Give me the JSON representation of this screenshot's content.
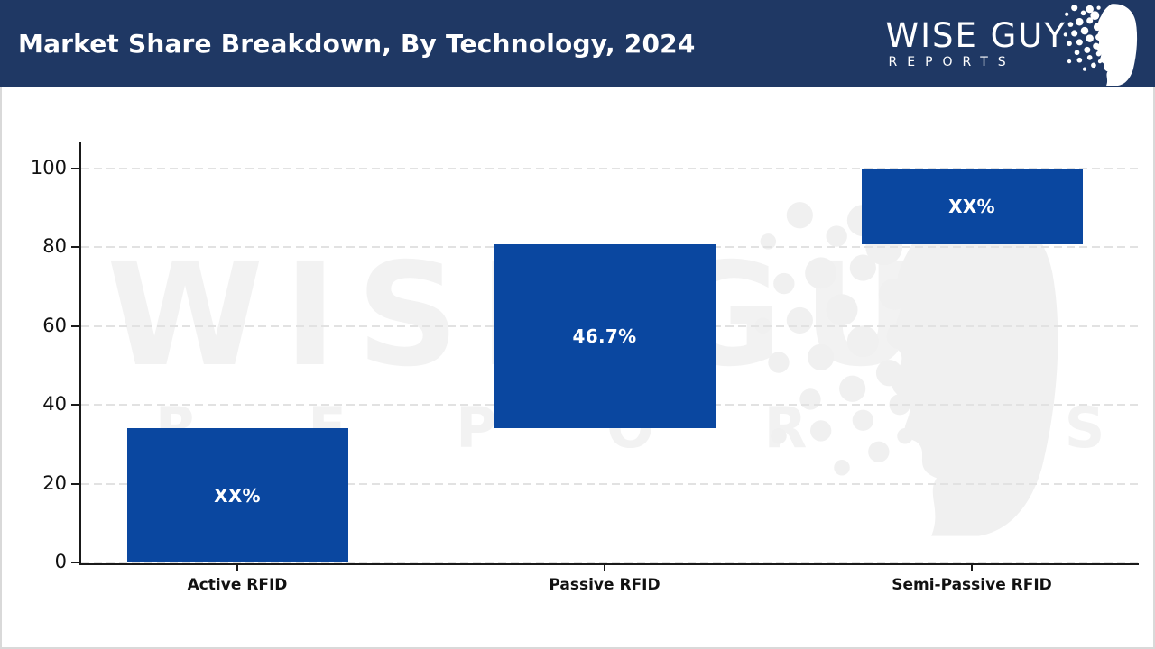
{
  "header": {
    "title": "Market Share Breakdown, By Technology, 2024",
    "logo": {
      "wordmark": "WISE GUY",
      "subtext": "REPORTS"
    }
  },
  "watermark": {
    "wordmark": "WISE GUY",
    "subtext": "R E P O R T S"
  },
  "chart_data": {
    "type": "bar",
    "variant": "waterfall (floating cumulative segments)",
    "title": "Market Share Breakdown, By Technology, 2024",
    "categories": [
      "Active RFID",
      "Passive RFID",
      "Semi-Passive RFID"
    ],
    "segments": [
      {
        "category": "Active RFID",
        "start": 0,
        "end": 34,
        "value": 34,
        "label": "XX%"
      },
      {
        "category": "Passive RFID",
        "start": 34,
        "end": 80.7,
        "value": 46.7,
        "label": "46.7%"
      },
      {
        "category": "Semi-Passive RFID",
        "start": 80.7,
        "end": 100,
        "value": 19.3,
        "label": "XX%"
      }
    ],
    "yticks": [
      0,
      20,
      40,
      60,
      80,
      100
    ],
    "ylim": [
      0,
      106
    ],
    "xlabel": "",
    "ylabel": "",
    "grid": "horizontal dashed",
    "legend": "none",
    "colors": {
      "bar": "#0a47a0",
      "header_bg": "#1f3864",
      "grid": "#e2e2e2",
      "axis": "#1a1a1a",
      "watermark": "#f2f2f2",
      "frame_border": "#d9d9d9"
    }
  }
}
